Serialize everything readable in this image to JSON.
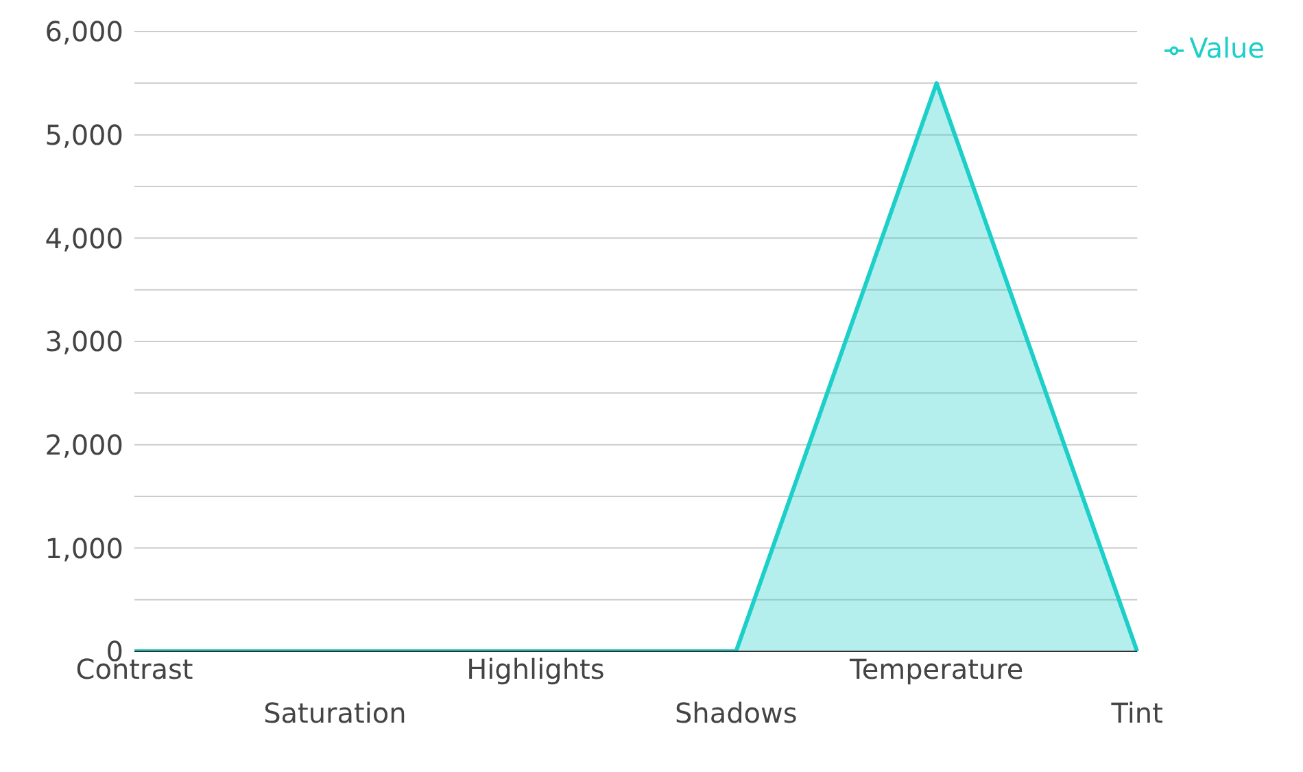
{
  "chart_data": {
    "type": "area",
    "categories": [
      "Contrast",
      "Saturation",
      "Highlights",
      "Shadows",
      "Temperature",
      "Tint"
    ],
    "series": [
      {
        "name": "Value",
        "color": "#1ccfc9",
        "values": [
          0,
          0,
          0,
          0,
          5500,
          0
        ]
      }
    ],
    "ylim": [
      0,
      6000
    ],
    "yticks": [
      {
        "value": 0,
        "label": "0"
      },
      {
        "value": 500,
        "label": null
      },
      {
        "value": 1000,
        "label": "1,000"
      },
      {
        "value": 1500,
        "label": null
      },
      {
        "value": 2000,
        "label": "2,000"
      },
      {
        "value": 2500,
        "label": null
      },
      {
        "value": 3000,
        "label": "3,000"
      },
      {
        "value": 3500,
        "label": null
      },
      {
        "value": 4000,
        "label": "4,000"
      },
      {
        "value": 4500,
        "label": null
      },
      {
        "value": 5000,
        "label": "5,000"
      },
      {
        "value": 5500,
        "label": null
      },
      {
        "value": 6000,
        "label": "6,000"
      }
    ],
    "grid": "y",
    "legend": "top right",
    "marker": "none"
  }
}
